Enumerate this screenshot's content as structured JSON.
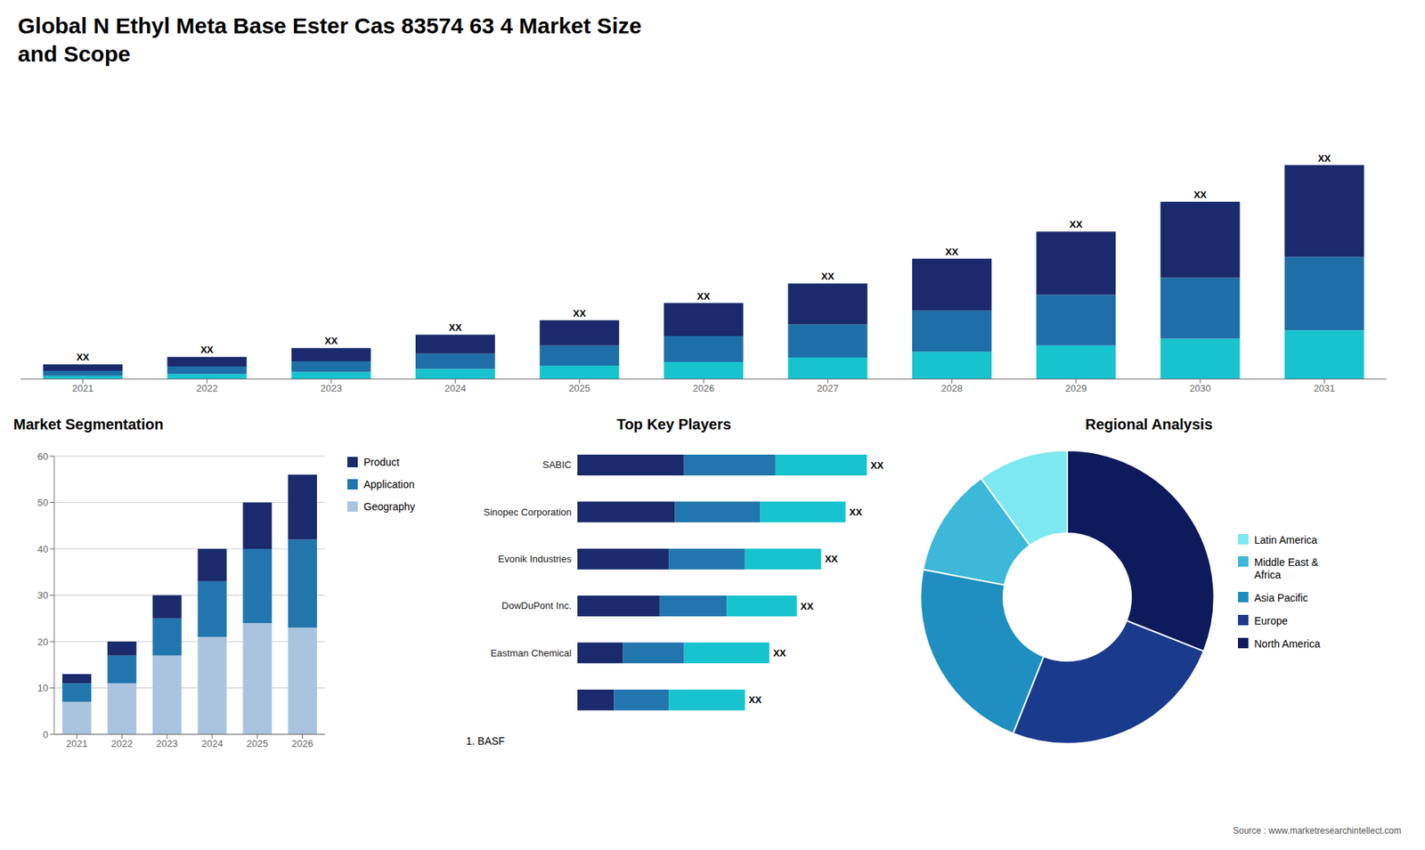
{
  "chart_data": [
    {
      "type": "bar",
      "title": "Global N Ethyl Meta Base Ester Cas 83574 63 4 Market Size\nand Scope",
      "stacked": true,
      "categories": [
        "2021",
        "2022",
        "2023",
        "2024",
        "2025",
        "2026",
        "2027",
        "2028",
        "2029",
        "2030",
        "2031"
      ],
      "series": [
        {
          "color": "#17c3ce",
          "values": [
            0.5,
            0.8,
            1.1,
            1.6,
            2.1,
            2.7,
            3.4,
            4.3,
            5.3,
            6.4,
            7.7
          ]
        },
        {
          "color": "#1e6fa8",
          "values": [
            0.8,
            1.2,
            1.7,
            2.4,
            3.2,
            4.1,
            5.2,
            6.5,
            8.0,
            9.6,
            11.6
          ]
        },
        {
          "color": "#1a2a6c",
          "values": [
            1.0,
            1.5,
            2.1,
            3.0,
            4.0,
            5.2,
            6.5,
            8.2,
            10.0,
            12.0,
            14.5
          ]
        }
      ],
      "ylim": [
        0,
        43.94
      ],
      "tick_labels": "x",
      "grid": false,
      "annotations": [
        {
          "category": "2021",
          "text": "XX"
        },
        {
          "category": "2022",
          "text": "XX"
        },
        {
          "category": "2023",
          "text": "XX"
        },
        {
          "category": "2024",
          "text": "XX"
        },
        {
          "category": "2025",
          "text": "XX"
        },
        {
          "category": "2026",
          "text": "XX"
        },
        {
          "category": "2027",
          "text": "XX"
        },
        {
          "category": "2028",
          "text": "XX"
        },
        {
          "category": "2029",
          "text": "XX"
        },
        {
          "category": "2030",
          "text": "XX"
        },
        {
          "category": "2031",
          "text": "XX"
        }
      ]
    },
    {
      "type": "bar",
      "title": "Market Segmentation",
      "stacked": true,
      "categories": [
        "2021",
        "2022",
        "2023",
        "2024",
        "2025",
        "2026"
      ],
      "series": [
        {
          "name": "Geography",
          "color": "#aac4e0",
          "values": [
            7,
            11,
            17,
            21,
            24,
            23
          ]
        },
        {
          "name": "Application",
          "color": "#2176ae",
          "values": [
            4,
            6,
            8,
            12,
            16,
            19
          ]
        },
        {
          "name": "Product",
          "color": "#1a2a6c",
          "values": [
            2,
            3,
            5,
            7,
            10,
            14
          ]
        }
      ],
      "ylim": [
        0,
        60
      ],
      "yticks": [
        0,
        10,
        20,
        30,
        40,
        50,
        60
      ],
      "grid": true,
      "legend": "right"
    },
    {
      "type": "bar",
      "title": "Top Key Players",
      "orientation": "horizontal",
      "stacked": true,
      "categories": [
        "SABIC",
        "Sinopec Corporation",
        "Evonik Industries",
        "DowDuPont Inc.",
        "Eastman Chemical",
        null
      ],
      "series": [
        {
          "color": "#1a2a6c",
          "values": [
            3.5,
            3.2,
            3.0,
            2.7,
            1.5,
            1.2
          ]
        },
        {
          "color": "#2176ae",
          "values": [
            3.0,
            2.8,
            2.5,
            2.2,
            2.0,
            1.8
          ]
        },
        {
          "color": "#17c3ce",
          "values": [
            3.0,
            2.8,
            2.5,
            2.3,
            2.8,
            2.5
          ]
        }
      ],
      "xlim": [
        0,
        9.5
      ],
      "tick_labels": "y",
      "grid": false,
      "annotations": [
        {
          "category": "SABIC",
          "text": "XX"
        },
        {
          "category": "Sinopec Corporation",
          "text": "XX"
        },
        {
          "category": "Evonik Industries",
          "text": "XX"
        },
        {
          "category": "DowDuPont Inc.",
          "text": "XX"
        },
        {
          "category": "Eastman Chemical",
          "text": "XX"
        },
        {
          "category": null,
          "text": "XX"
        },
        {
          "text": "1. BASF"
        }
      ]
    },
    {
      "type": "pie",
      "title": "Regional Analysis",
      "categories": [
        "Latin America",
        "Middle East &\nAfrica",
        "Asia Pacific",
        "Europe",
        "North America"
      ],
      "values": [
        10,
        12,
        22,
        25,
        31
      ],
      "colors": [
        "#7ee8f0",
        "#3db8d8",
        "#1e8fc0",
        "#1a3a8c",
        "#0d1a5c"
      ],
      "legend": "right",
      "annotations": [
        {
          "text": "Source : www.marketresearchintellect.com"
        }
      ]
    }
  ]
}
